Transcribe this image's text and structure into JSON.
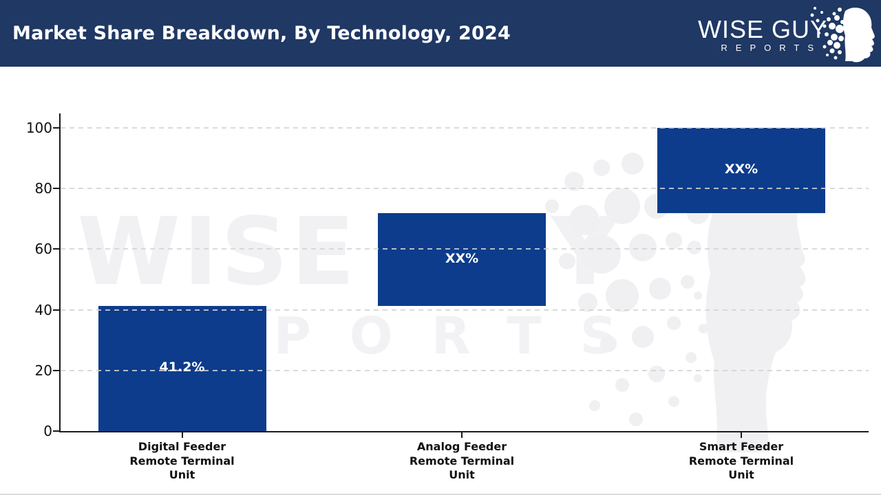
{
  "header": {
    "title": "Market Share Breakdown, By Technology, 2024",
    "bg_color": "#1f3864",
    "logo": {
      "line1": "WISE GUY",
      "line2": "REPORTS"
    }
  },
  "watermark": {
    "line1": "WISE GUY",
    "line2": "REPORTS"
  },
  "chart_data": {
    "type": "bar",
    "subtype": "waterfall-stacked-percentage",
    "title": "Market Share Breakdown, By Technology, 2024",
    "categories": [
      [
        "Digital Feeder",
        "Remote Terminal",
        "Unit"
      ],
      [
        "Analog Feeder",
        "Remote Terminal",
        "Unit"
      ],
      [
        "Smart Feeder",
        "Remote Terminal",
        "Unit"
      ]
    ],
    "segments": [
      {
        "label": "41.2%",
        "start": 0,
        "end": 41.2
      },
      {
        "label": "XX%",
        "start": 41.2,
        "end": 71.8
      },
      {
        "label": "XX%",
        "start": 71.8,
        "end": 100
      }
    ],
    "yticks": [
      0,
      20,
      40,
      60,
      80,
      100
    ],
    "ylim": [
      0,
      105
    ],
    "xlabel": "",
    "ylabel": "",
    "bar_color": "#0d3c8c",
    "grid": true,
    "grid_style": "dashed",
    "legend": false
  }
}
